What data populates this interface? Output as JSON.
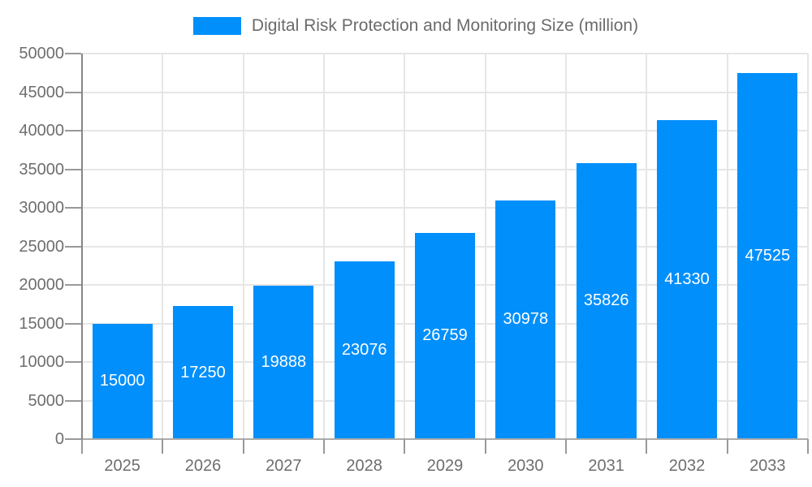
{
  "chart_data": {
    "type": "bar",
    "title": "Digital Risk Protection and Monitoring Size (million)",
    "categories": [
      "2025",
      "2026",
      "2027",
      "2028",
      "2029",
      "2030",
      "2031",
      "2032",
      "2033"
    ],
    "series": [
      {
        "name": "Digital Risk Protection and Monitoring Size (million)",
        "values": [
          15000,
          17250,
          19888,
          23076,
          26759,
          30978,
          35826,
          41330,
          47525
        ]
      }
    ],
    "bar_labels": [
      "15000",
      "17250",
      "19888",
      "23076",
      "26759",
      "30978",
      "35826",
      "41330",
      "47525"
    ],
    "xlabel": "",
    "ylabel": "",
    "ylim": [
      0,
      50000
    ],
    "yticks": [
      0,
      5000,
      10000,
      15000,
      20000,
      25000,
      30000,
      35000,
      40000,
      45000,
      50000
    ],
    "grid": true,
    "legend_position": "top",
    "colors": {
      "bar": "#008FFB",
      "bar_label": "#FFFFFF",
      "axis_label": "#6E6E6E",
      "legend_text": "#6B6B6B",
      "gridline": "#E6E6E6",
      "axis_line": "#878787",
      "tick": "#999999",
      "baseline": "#ABABAB",
      "background": "#FFFFFF"
    }
  }
}
